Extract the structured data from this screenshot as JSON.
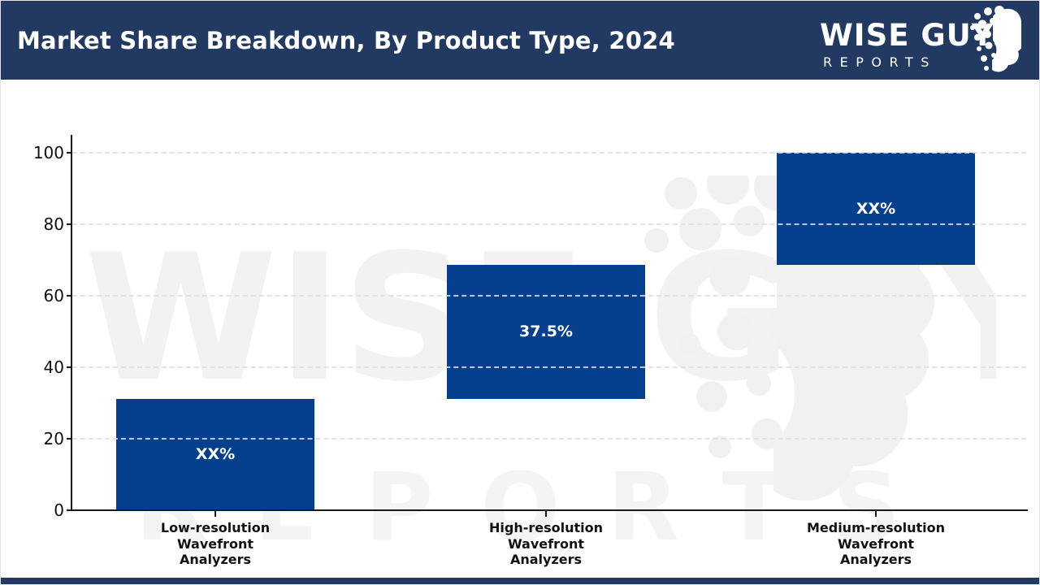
{
  "header": {
    "title": "Market Share Breakdown, By Product Type, 2024",
    "logo": {
      "primary": "WISE GUY",
      "secondary": "REPORTS"
    }
  },
  "watermark": {
    "primary": "WISE GUY",
    "secondary": "REPORTS"
  },
  "chart_data": {
    "type": "bar",
    "variant": "floating-waterfall",
    "title": "Market Share Breakdown, By Product Type, 2024",
    "categories": [
      [
        "Low-resolution",
        "Wavefront",
        "Analyzers"
      ],
      [
        "High-resolution",
        "Wavefront",
        "Analyzers"
      ],
      [
        "Medium-resolution",
        "Wavefront",
        "Analyzers"
      ]
    ],
    "bars": [
      {
        "label": "XX%",
        "start": 0,
        "end": 31.25
      },
      {
        "label": "37.5%",
        "start": 31.25,
        "end": 68.75
      },
      {
        "label": "XX%",
        "start": 68.75,
        "end": 100
      }
    ],
    "yticks": [
      0,
      20,
      40,
      60,
      80,
      100
    ],
    "ylim": [
      0,
      105
    ],
    "xlabel": "",
    "ylabel": "",
    "legend": null,
    "grid": {
      "visible": true,
      "axis": "y",
      "style": "dashed",
      "color": "#dedede"
    },
    "bar_color": "#05408e",
    "value_label_color": "#ffffff",
    "header_color": "#223a62"
  }
}
